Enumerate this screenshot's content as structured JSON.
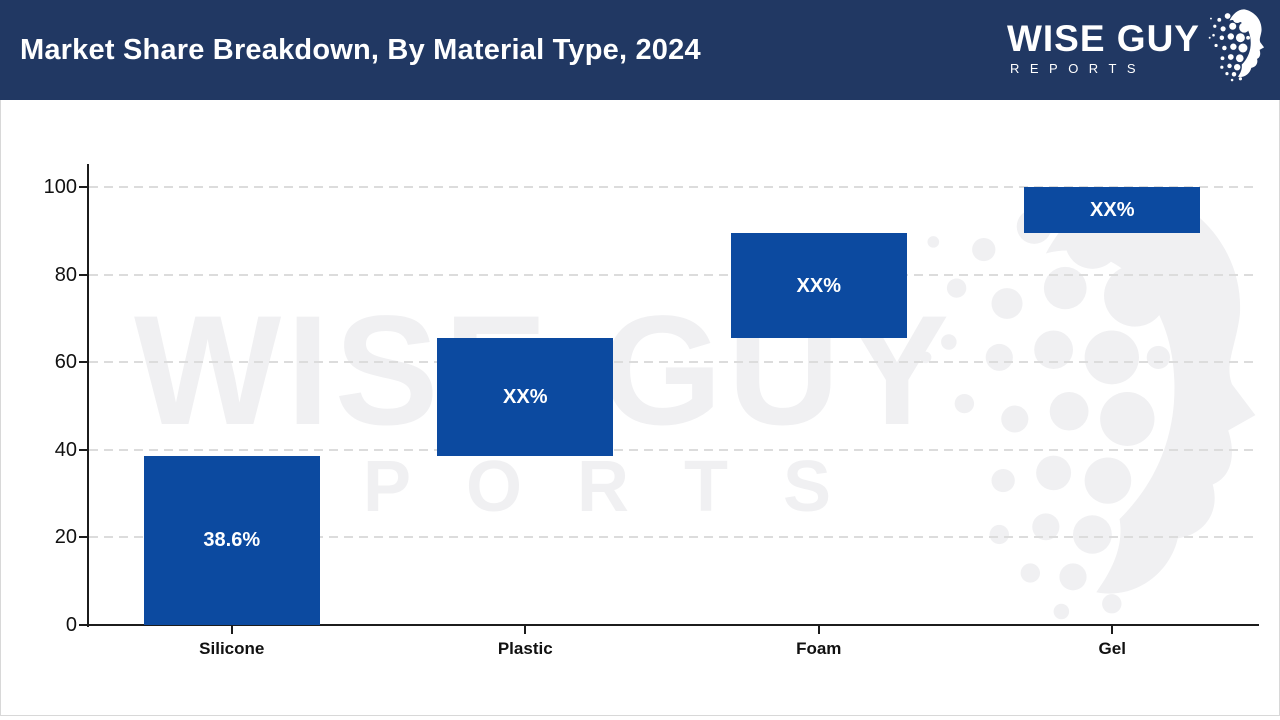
{
  "header": {
    "title": "Market Share Breakdown, By Material Type, 2024",
    "brand": {
      "line1": "WISE GUY",
      "line2": "REPORTS"
    }
  },
  "watermark": {
    "line1": "WISE GUY",
    "line2": "REPORTS"
  },
  "chart_data": {
    "type": "bar",
    "subtype": "waterfall",
    "title": "Market Share Breakdown, By Material Type, 2024",
    "categories": [
      "Silicone",
      "Plastic",
      "Foam",
      "Gel"
    ],
    "segments": [
      {
        "label": "Silicone",
        "start": 0,
        "end": 38.6,
        "value_label": "38.6%"
      },
      {
        "label": "Plastic",
        "start": 38.6,
        "end": 65.5,
        "value_label": "XX%"
      },
      {
        "label": "Foam",
        "start": 65.5,
        "end": 89.4,
        "value_label": "XX%"
      },
      {
        "label": "Gel",
        "start": 89.4,
        "end": 100,
        "value_label": "XX%"
      }
    ],
    "xlabel": "",
    "ylabel": "",
    "ylim": [
      0,
      105
    ],
    "yticks": [
      0,
      20,
      40,
      60,
      80,
      100
    ],
    "grid": "horizontal-dashed",
    "legend": "none",
    "bar_color": "#0c4aa0",
    "label_color": "#ffffff"
  },
  "colors": {
    "header_bg": "#213863",
    "bar": "#0c4aa0",
    "axis": "#1c1c1c",
    "grid": "#dcdcdc",
    "watermark": "#f0f0f2"
  }
}
